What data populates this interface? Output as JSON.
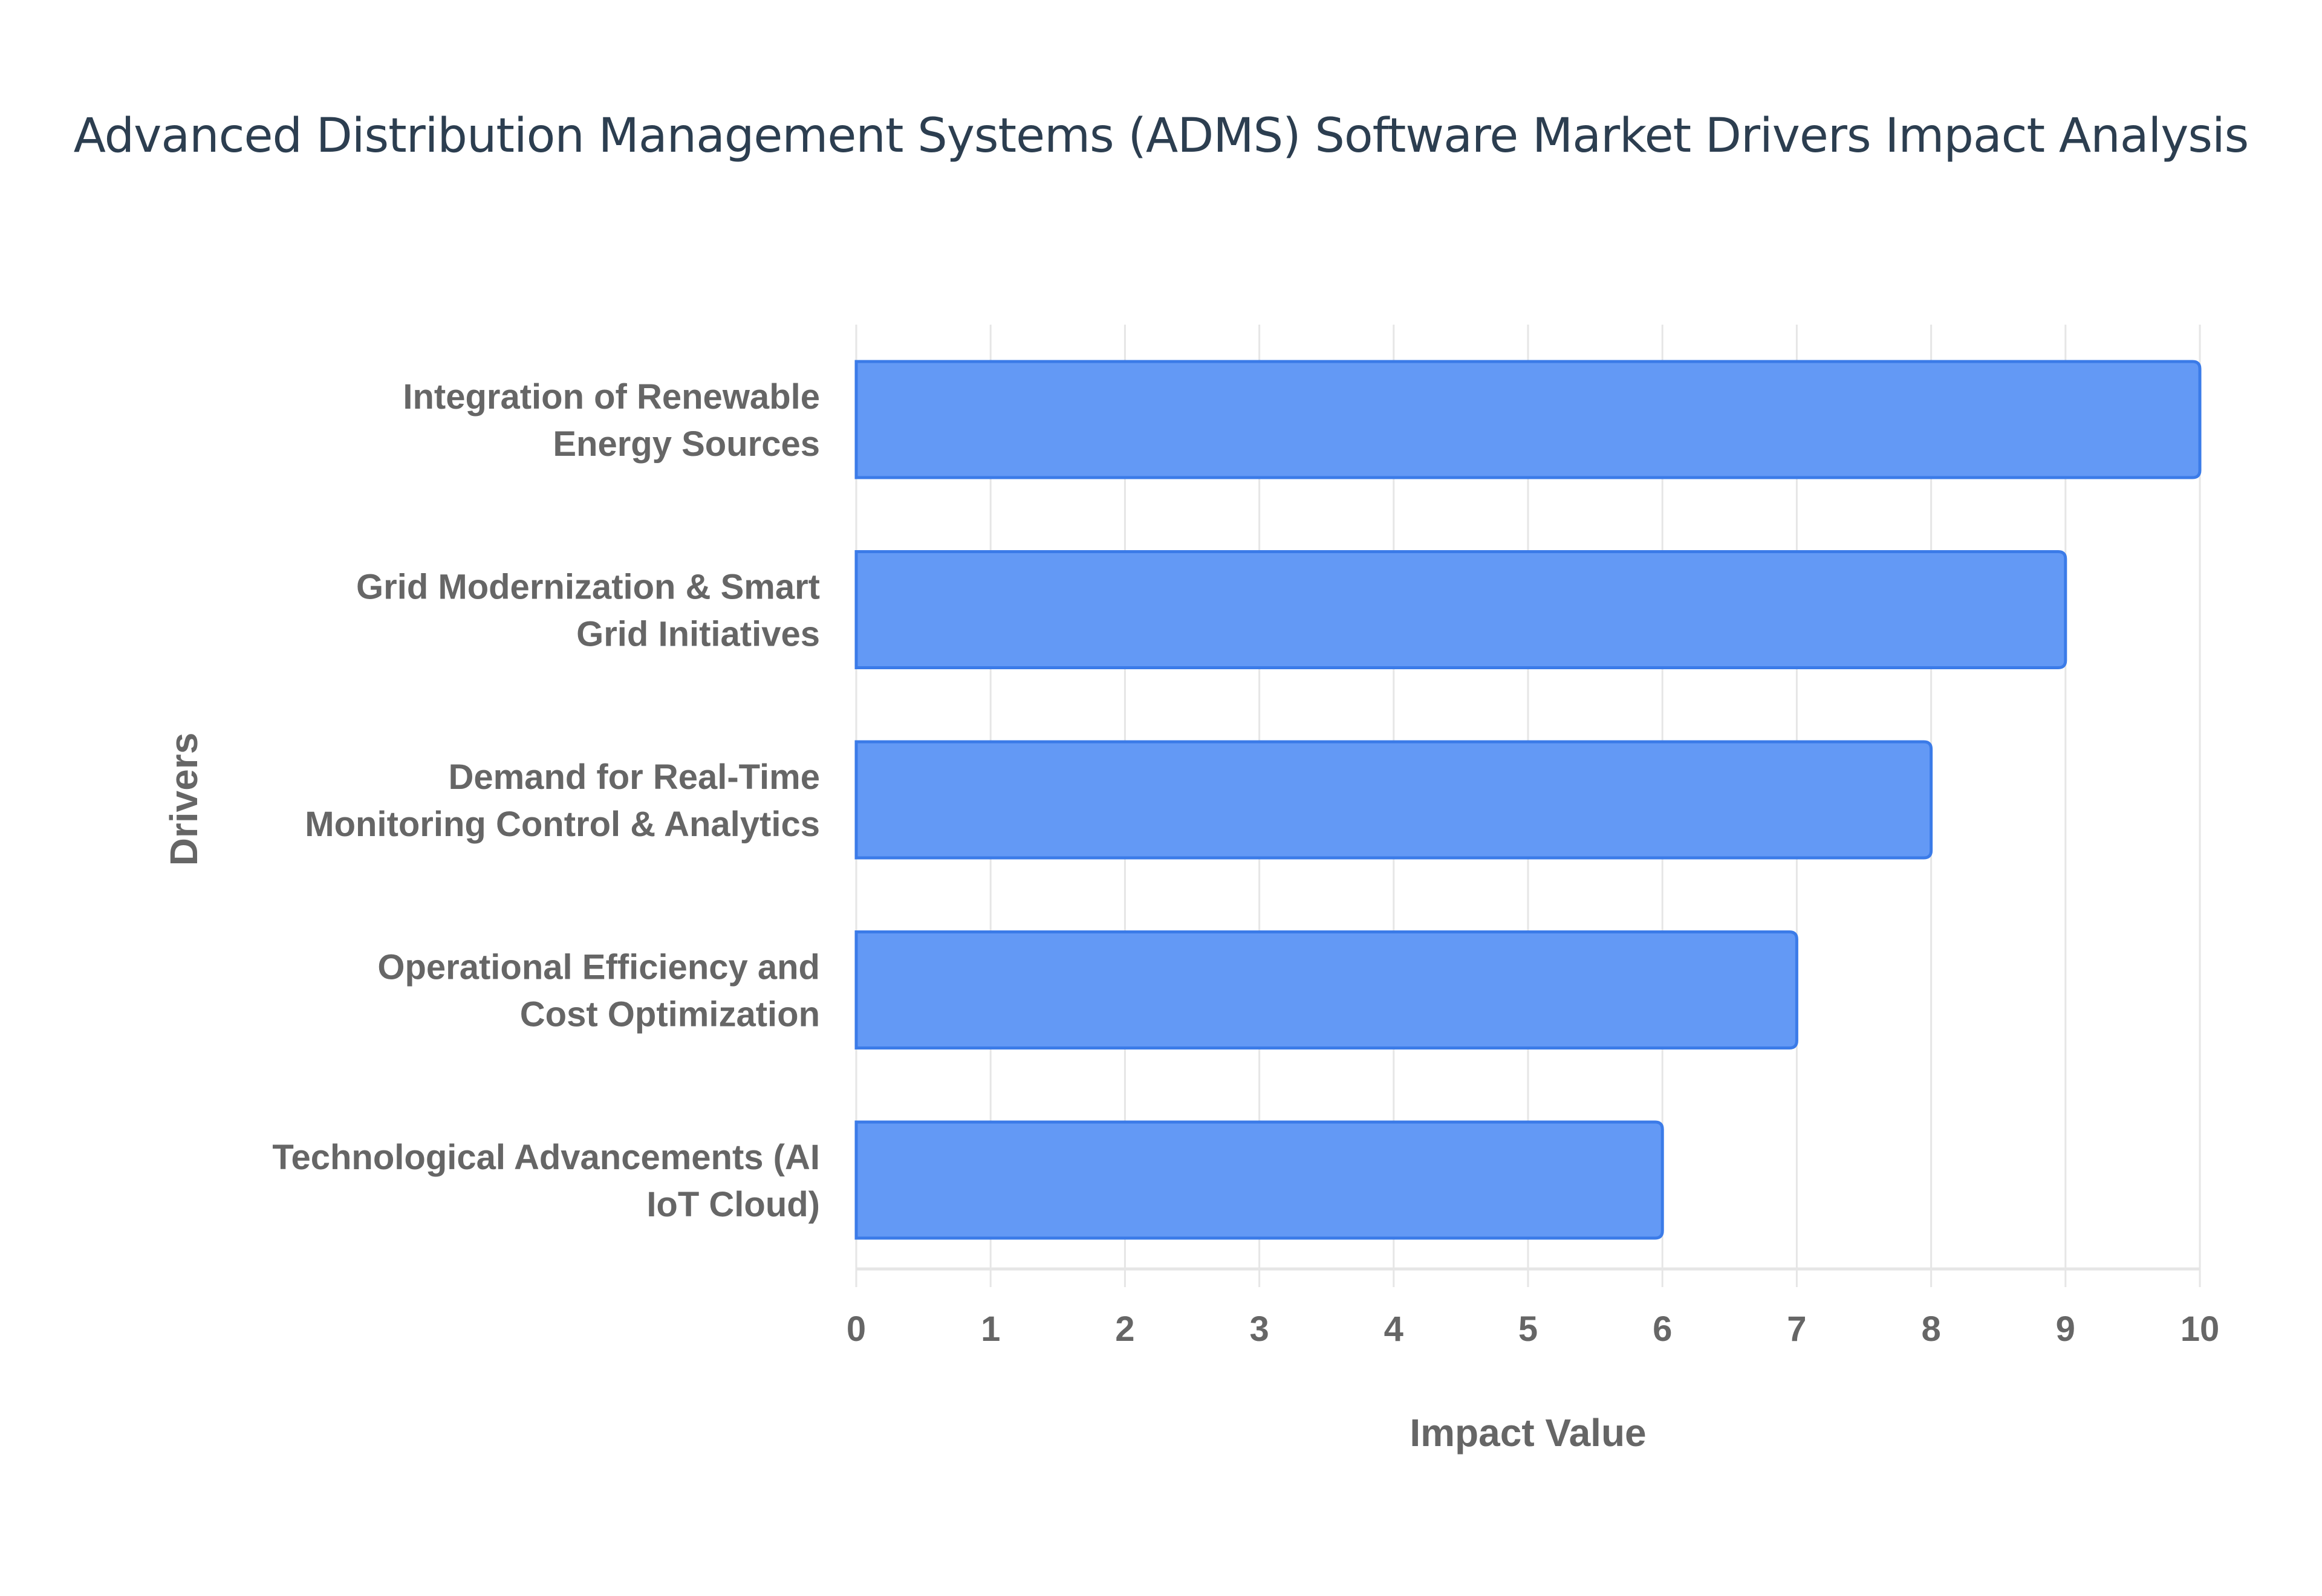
{
  "chart_data": {
    "type": "bar",
    "orientation": "horizontal",
    "title": "Advanced Distribution Management Systems (ADMS) Software Market Drivers Impact Analysis",
    "xlabel": "Impact Value",
    "ylabel": "Drivers",
    "categories": [
      [
        "Integration of Renewable",
        "Energy Sources"
      ],
      [
        "Grid Modernization & Smart",
        "Grid Initiatives"
      ],
      [
        "Demand for Real-Time",
        "Monitoring Control & Analytics"
      ],
      [
        "Operational Efficiency and",
        "Cost Optimization"
      ],
      [
        "Technological Advancements (AI",
        "IoT Cloud)"
      ]
    ],
    "values": [
      10,
      9,
      8,
      7,
      6
    ],
    "xlim": [
      0,
      10
    ],
    "xticks": [
      "0",
      "1",
      "2",
      "3",
      "4",
      "5",
      "6",
      "7",
      "8",
      "9",
      "10"
    ],
    "grid": true,
    "bar_color": "#6399f5",
    "bar_border_color": "#3b7be8"
  }
}
